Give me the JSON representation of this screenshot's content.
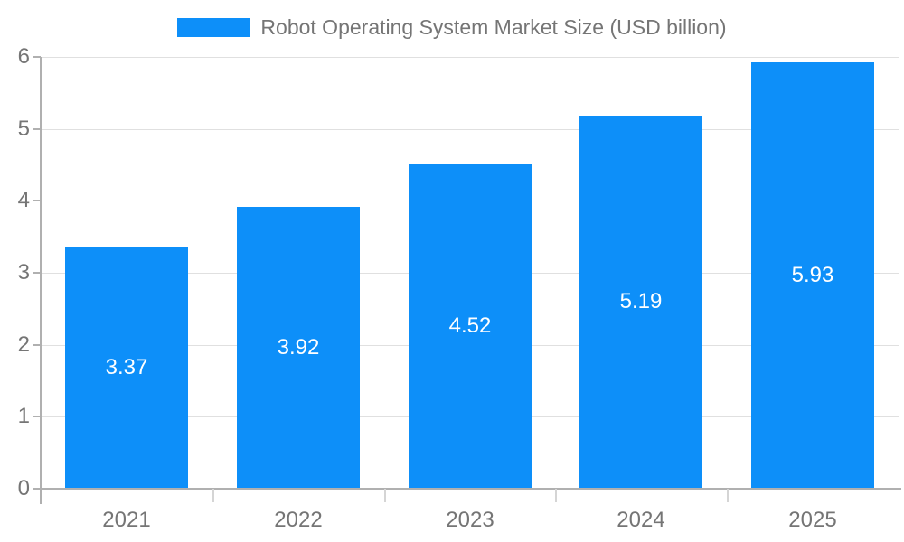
{
  "legend": {
    "label": "Robot Operating System Market Size (USD billion)"
  },
  "colors": {
    "bar": "#0d8ff9",
    "bar_label": "#ffffff",
    "axis_text": "#757575",
    "grid_line": "#e0e0e0",
    "axis_line": "#b0b0b0",
    "boundary_tick": "#d5d5d5",
    "background": "#ffffff"
  },
  "chart_data": {
    "type": "bar",
    "title": "Robot Operating System Market Size (USD billion)",
    "categories": [
      "2021",
      "2022",
      "2023",
      "2024",
      "2025"
    ],
    "series": [
      {
        "name": "Robot Operating System Market Size (USD billion)",
        "values": [
          3.37,
          3.92,
          4.52,
          5.19,
          5.93
        ]
      }
    ],
    "bar_labels": [
      "3.37",
      "3.92",
      "4.52",
      "5.19",
      "5.93"
    ],
    "xlabel": "",
    "ylabel": "",
    "ylim": [
      0,
      6
    ],
    "yticks": [
      0,
      1,
      2,
      3,
      4,
      5,
      6
    ],
    "grid": true,
    "legend_position": "top",
    "bar_label_position": "inside-center"
  }
}
